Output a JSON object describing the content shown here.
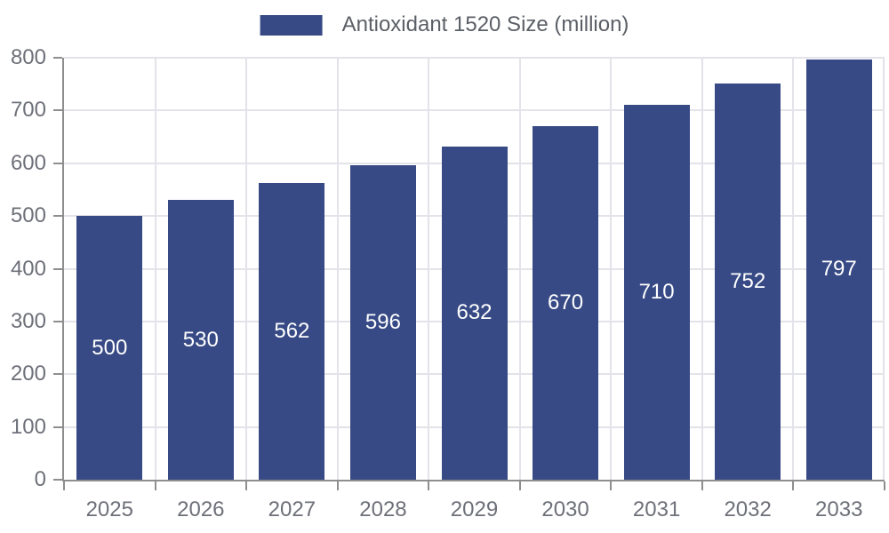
{
  "chart_data": {
    "type": "bar",
    "title": "Antioxidant 1520 Size (million)",
    "legend_label": "Antioxidant 1520 Size (million)",
    "legend_position": "top-center",
    "categories": [
      "2025",
      "2026",
      "2027",
      "2028",
      "2029",
      "2030",
      "2031",
      "2032",
      "2033"
    ],
    "series": [
      {
        "name": "Antioxidant 1520 Size (million)",
        "values": [
          500,
          530,
          562,
          596,
          632,
          670,
          710,
          752,
          797
        ]
      }
    ],
    "xlabel": "",
    "ylabel": "",
    "ylim": [
      0,
      800
    ],
    "ytick_step": 100,
    "grid": true,
    "value_labels": "inside-center",
    "colors": {
      "bar": "#374A85",
      "value_label": "#ffffff",
      "grid_line": "#e3e3ea",
      "axis_line": "#8e8e8e",
      "tick_label": "#6e7079",
      "legend_text": "#5b5f66",
      "background": "#ffffff"
    }
  }
}
